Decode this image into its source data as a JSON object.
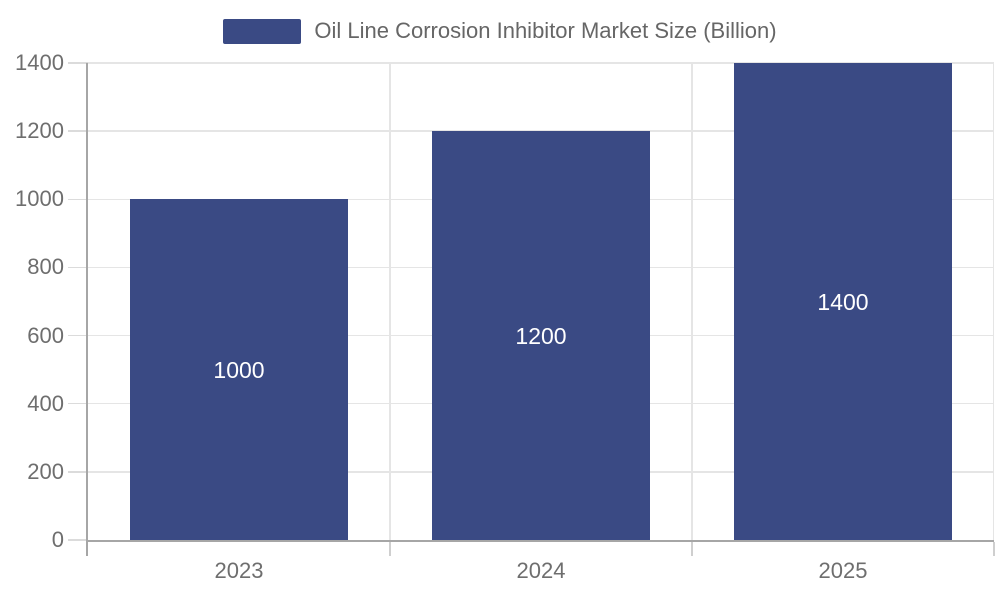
{
  "legend": {
    "label": "Oil Line Corrosion Inhibitor Market Size (Billion)"
  },
  "chart_data": {
    "type": "bar",
    "title": "Oil Line Corrosion Inhibitor Market Size (Billion)",
    "categories": [
      "2023",
      "2024",
      "2025"
    ],
    "values": [
      1000,
      1200,
      1400
    ],
    "bar_labels": [
      "1000",
      "1200",
      "1400"
    ],
    "xlabel": "",
    "ylabel": "",
    "ylim": [
      0,
      1400
    ],
    "yticks": [
      0,
      200,
      400,
      600,
      800,
      1000,
      1200,
      1400
    ],
    "grid": true,
    "legend_position": "top-center",
    "bar_label_position": "inside-center",
    "colors": {
      "bar": "#3A4A84",
      "bar_label_text": "#FFFFFF",
      "axis_line": "#A6A6A6",
      "y_tick_line": "#DBDBDB",
      "x_tick_line": "#CFCFCF",
      "grid_line": "#E5E5E5",
      "axis_text": "#6E6E6E",
      "legend_text": "#666666",
      "background": "#FFFFFF"
    }
  }
}
